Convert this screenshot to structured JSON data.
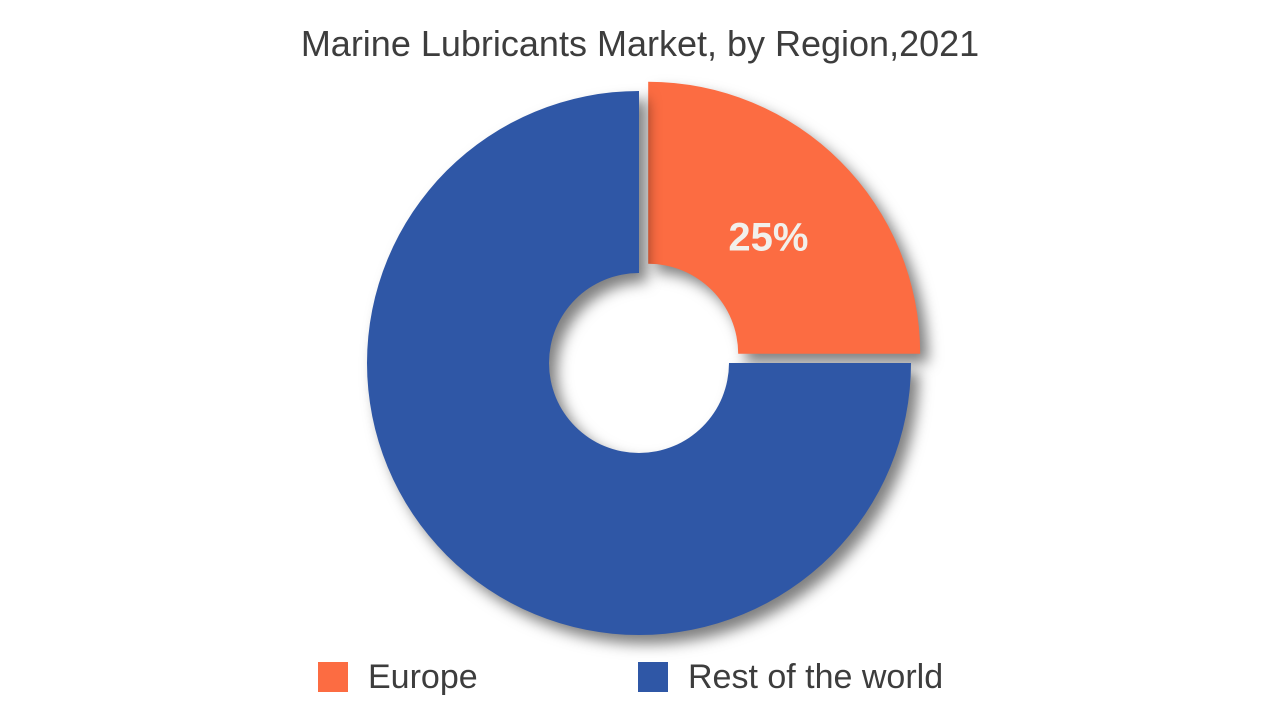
{
  "chart_data": {
    "type": "pie",
    "subtype": "donut",
    "title": "Marine Lubricants Market, by Region,2021",
    "unit": "%",
    "categories": [
      "Europe",
      "Rest of the world"
    ],
    "values": [
      25,
      75
    ],
    "series": [
      {
        "name": "Europe",
        "value": 25,
        "data_label": "25%",
        "color": "#FC6C42",
        "exploded": true
      },
      {
        "name": "Rest of the world",
        "value": 75,
        "data_label": "",
        "color": "#2F57A6",
        "exploded": false
      }
    ],
    "start_angle_deg": 0,
    "clockwise": true,
    "inner_radius_ratio": 0.33,
    "data_label_color": "#F2F0EB",
    "legend_position": "bottom",
    "title_color": "#3d3d3d",
    "background_color": "#ffffff",
    "shadow": true
  }
}
